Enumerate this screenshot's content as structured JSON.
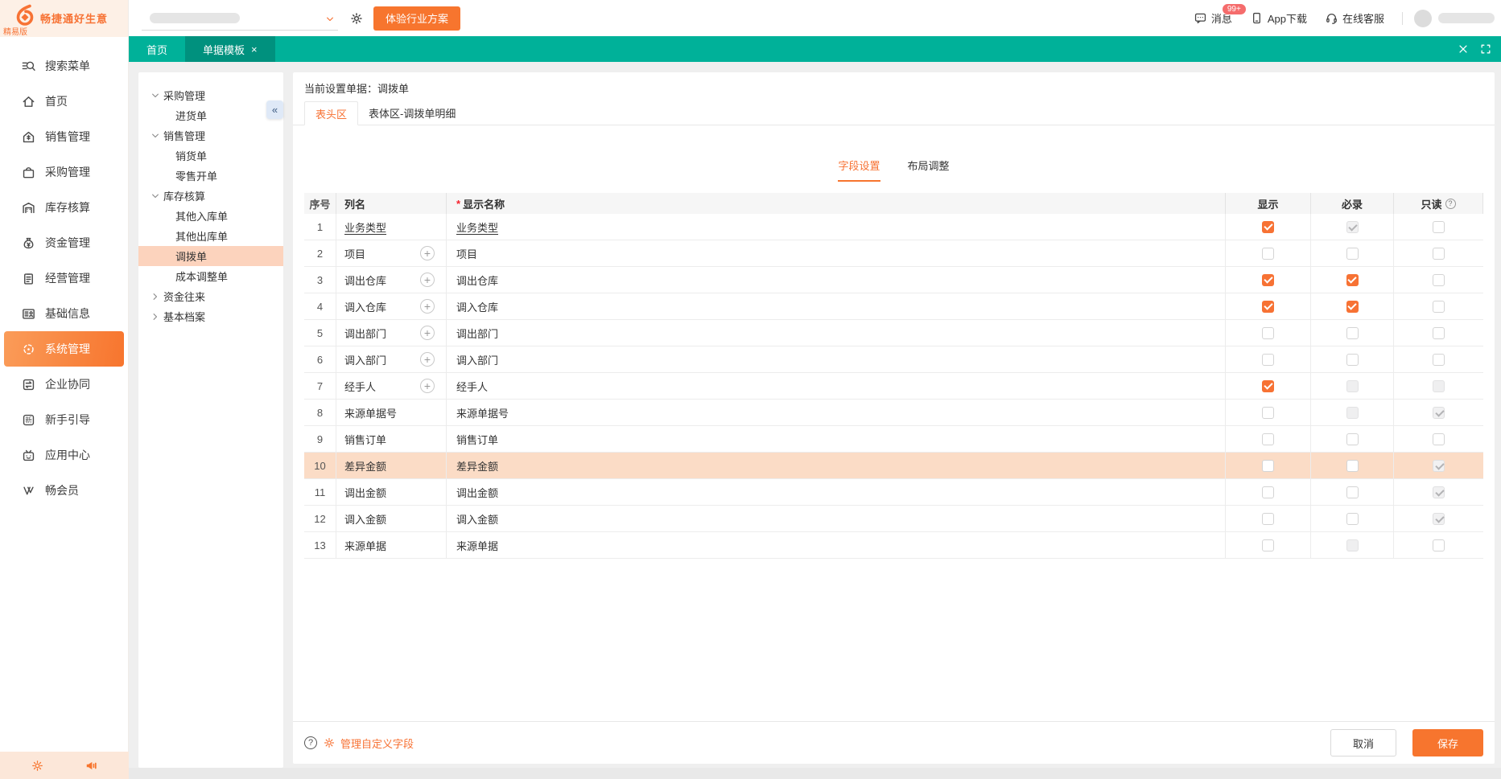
{
  "colors": {
    "accent": "#f77234",
    "teal_bar": "#00b199",
    "teal_active_tab": "#00917e",
    "row_highlight": "#fbdcc6",
    "badge": "#f56c6c",
    "sidebar_active": "#f7752e"
  },
  "brand": {
    "name": "畅捷通好生意",
    "edition": "精易版",
    "logo_icon": "brand-6-mark"
  },
  "topbar": {
    "company_selector": {
      "chevron_icon": "chevron-down",
      "redacted": true
    },
    "settings_icon": "gear",
    "trial_button": "体验行业方案",
    "messages": {
      "label": "消息",
      "badge": "99+",
      "icon": "message-bubble"
    },
    "app_download": {
      "label": "App下载",
      "icon": "phone"
    },
    "online_service": {
      "label": "在线客服",
      "icon": "headset"
    },
    "user": {
      "avatar": "avatar-circle",
      "name_redacted": true
    }
  },
  "tabbar": {
    "tabs": [
      {
        "label": "首页",
        "active": false,
        "closable": false
      },
      {
        "label": "单据模板",
        "active": true,
        "closable": true
      }
    ],
    "close_icon": "close-x",
    "fullscreen_icon": "fullscreen-corners"
  },
  "sidebar": {
    "items": [
      {
        "label": "搜索菜单",
        "icon": "search",
        "active": false
      },
      {
        "label": "首页",
        "icon": "home",
        "active": false
      },
      {
        "label": "销售管理",
        "icon": "sales-house",
        "active": false
      },
      {
        "label": "采购管理",
        "icon": "purchase-bag",
        "active": false
      },
      {
        "label": "库存核算",
        "icon": "inventory-warehouse",
        "active": false
      },
      {
        "label": "资金管理",
        "icon": "funds-moneybag",
        "active": false
      },
      {
        "label": "经营管理",
        "icon": "operations-clipboard",
        "active": false
      },
      {
        "label": "基础信息",
        "icon": "base-info-card",
        "active": false
      },
      {
        "label": "系统管理",
        "icon": "system-dashed-circle",
        "active": true
      },
      {
        "label": "企业协同",
        "icon": "collab-board",
        "active": false
      },
      {
        "label": "新手引导",
        "icon": "guide-badge",
        "active": false
      },
      {
        "label": "应用中心",
        "icon": "apps-tv",
        "active": false
      },
      {
        "label": "畅会员",
        "icon": "member-v",
        "active": false
      }
    ],
    "bottom_icons": [
      "gear",
      "speaker-collapse"
    ]
  },
  "tree": {
    "collapse_button": "«",
    "items": [
      {
        "label": "采购管理",
        "type": "group",
        "expanded": true,
        "selected": false
      },
      {
        "label": "进货单",
        "type": "leaf",
        "selected": false
      },
      {
        "label": "销售管理",
        "type": "group",
        "expanded": true,
        "selected": false
      },
      {
        "label": "销货单",
        "type": "leaf",
        "selected": false
      },
      {
        "label": "零售开单",
        "type": "leaf",
        "selected": false
      },
      {
        "label": "库存核算",
        "type": "group",
        "expanded": true,
        "selected": false
      },
      {
        "label": "其他入库单",
        "type": "leaf",
        "selected": false
      },
      {
        "label": "其他出库单",
        "type": "leaf",
        "selected": false
      },
      {
        "label": "调拨单",
        "type": "leaf",
        "selected": true
      },
      {
        "label": "成本调整单",
        "type": "leaf",
        "selected": false
      },
      {
        "label": "资金往来",
        "type": "group",
        "expanded": false,
        "selected": false
      },
      {
        "label": "基本档案",
        "type": "group",
        "expanded": false,
        "selected": false
      }
    ]
  },
  "main": {
    "title": "当前设置单据：调拨单",
    "area_tabs": [
      {
        "label": "表头区",
        "active": true
      },
      {
        "label": "表体区-调拨单明细",
        "active": false
      }
    ],
    "setting_tabs": [
      {
        "label": "字段设置",
        "active": true
      },
      {
        "label": "布局调整",
        "active": false
      }
    ],
    "table": {
      "headers": {
        "index": "序号",
        "column": "列名",
        "display_name": "显示名称",
        "display_name_required_mark": "*",
        "show": "显示",
        "required": "必录",
        "readonly": "只读",
        "readonly_help_icon": "question-circle"
      },
      "rows": [
        {
          "no": "1",
          "col": "业务类型",
          "display": "业务类型",
          "underline": true,
          "plus": false,
          "show": "on",
          "required": "disabled-on",
          "readonly": "off",
          "highlight": false
        },
        {
          "no": "2",
          "col": "项目",
          "display": "项目",
          "underline": false,
          "plus": true,
          "show": "off",
          "required": "off",
          "readonly": "off",
          "highlight": false
        },
        {
          "no": "3",
          "col": "调出仓库",
          "display": "调出仓库",
          "underline": false,
          "plus": true,
          "show": "on",
          "required": "on",
          "readonly": "off",
          "highlight": false
        },
        {
          "no": "4",
          "col": "调入仓库",
          "display": "调入仓库",
          "underline": false,
          "plus": true,
          "show": "on",
          "required": "on",
          "readonly": "off",
          "highlight": false
        },
        {
          "no": "5",
          "col": "调出部门",
          "display": "调出部门",
          "underline": false,
          "plus": true,
          "show": "off",
          "required": "off",
          "readonly": "off",
          "highlight": false
        },
        {
          "no": "6",
          "col": "调入部门",
          "display": "调入部门",
          "underline": false,
          "plus": true,
          "show": "off",
          "required": "off",
          "readonly": "off",
          "highlight": false
        },
        {
          "no": "7",
          "col": "经手人",
          "display": "经手人",
          "underline": false,
          "plus": true,
          "show": "on",
          "required": "disabled",
          "readonly": "disabled",
          "highlight": false
        },
        {
          "no": "8",
          "col": "来源单据号",
          "display": "来源单据号",
          "underline": false,
          "plus": false,
          "show": "off",
          "required": "disabled",
          "readonly": "disabled-on",
          "highlight": false
        },
        {
          "no": "9",
          "col": "销售订单",
          "display": "销售订单",
          "underline": false,
          "plus": false,
          "show": "off",
          "required": "off",
          "readonly": "off",
          "highlight": false
        },
        {
          "no": "10",
          "col": "差异金额",
          "display": "差异金额",
          "underline": false,
          "plus": false,
          "show": "off",
          "required": "off",
          "readonly": "disabled-on",
          "highlight": true
        },
        {
          "no": "11",
          "col": "调出金额",
          "display": "调出金额",
          "underline": false,
          "plus": false,
          "show": "off",
          "required": "off",
          "readonly": "disabled-on",
          "highlight": false
        },
        {
          "no": "12",
          "col": "调入金额",
          "display": "调入金额",
          "underline": false,
          "plus": false,
          "show": "off",
          "required": "off",
          "readonly": "disabled-on",
          "highlight": false
        },
        {
          "no": "13",
          "col": "来源单据",
          "display": "来源单据",
          "underline": false,
          "plus": false,
          "show": "off",
          "required": "disabled",
          "readonly": "off",
          "highlight": false
        }
      ]
    },
    "footer": {
      "help_icon": "question-circle",
      "gear_icon": "gear",
      "manage_link": "管理自定义字段",
      "cancel": "取消",
      "save": "保存"
    }
  }
}
